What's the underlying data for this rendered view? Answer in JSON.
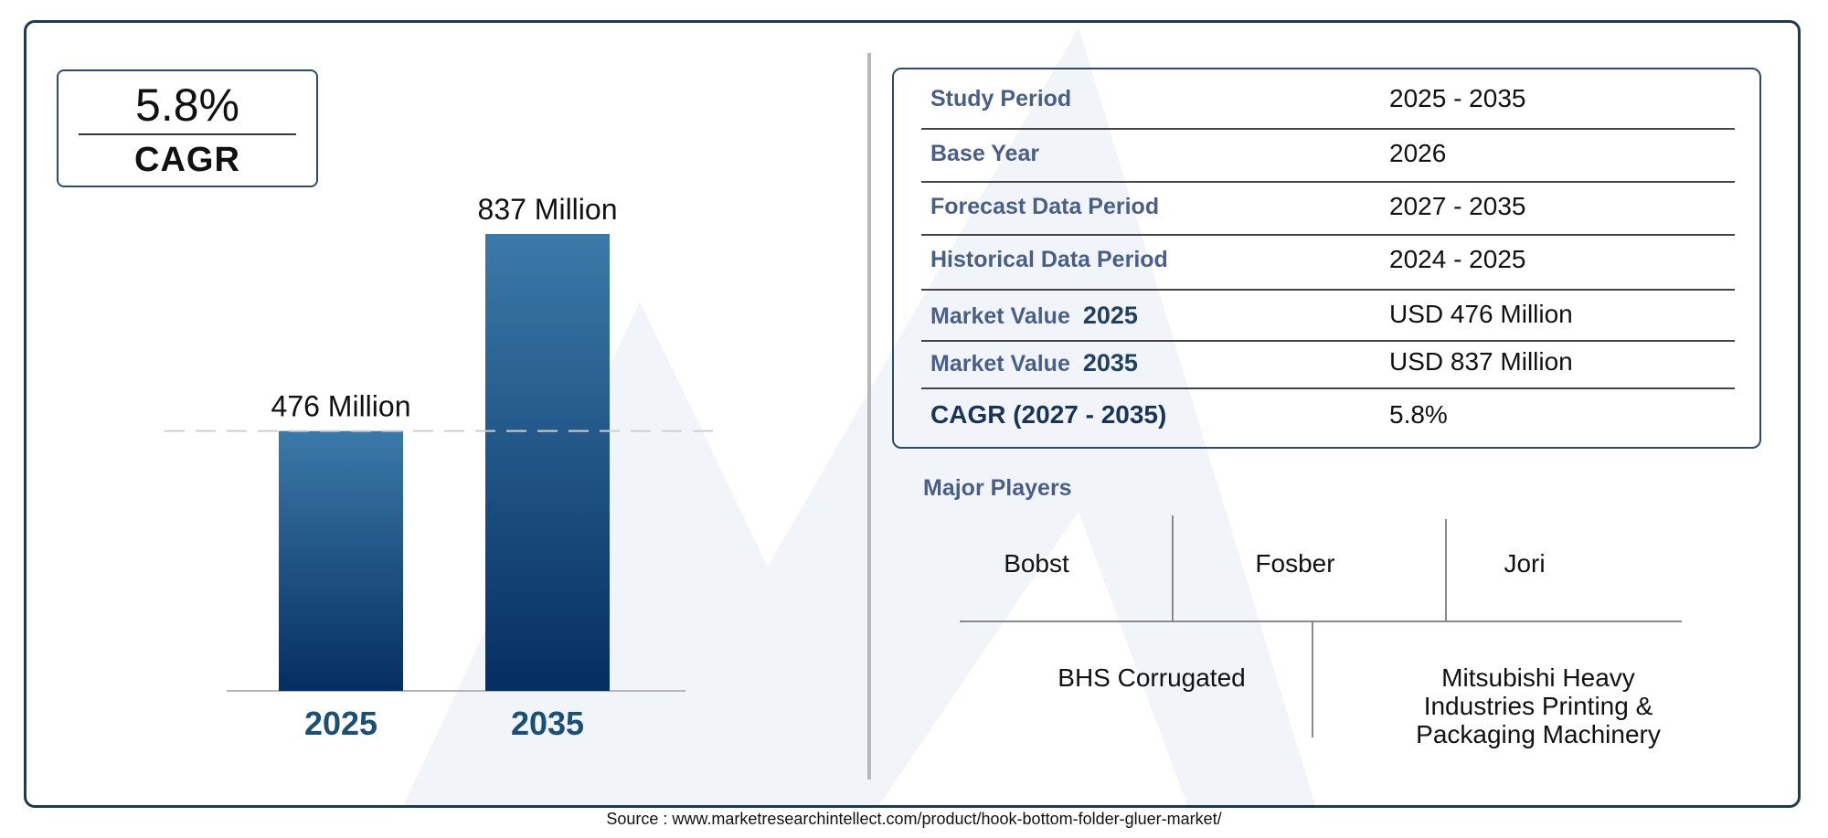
{
  "cagr_badge": {
    "value": "5.8%",
    "label": "CAGR"
  },
  "chart_data": {
    "type": "bar",
    "categories": [
      "2025",
      "2035"
    ],
    "values": [
      476,
      837
    ],
    "data_labels": [
      "476 Million",
      "837 Million"
    ],
    "unit": "Million",
    "bar_color_top": "#3b7aa8",
    "bar_color_bottom": "#052e62",
    "axis_label_color": "#1d4e73"
  },
  "info_table": {
    "rows": [
      {
        "label": "Study Period",
        "year": "",
        "value": "2025 - 2035"
      },
      {
        "label": "Base Year",
        "year": "",
        "value": "2026"
      },
      {
        "label": "Forecast Data Period",
        "year": "",
        "value": "2027 - 2035"
      },
      {
        "label": "Historical Data Period",
        "year": "",
        "value": "2024 - 2025"
      },
      {
        "label": "Market Value",
        "year": "2025",
        "value": "USD 476 Million"
      },
      {
        "label": "Market Value",
        "year": "2035",
        "value": "USD 837 Million"
      },
      {
        "label": "CAGR (2027 - 2035)",
        "year": "",
        "value": "5.8%"
      }
    ]
  },
  "major_players": {
    "title": "Major Players",
    "row1": [
      "Bobst",
      "Fosber",
      "Jori"
    ],
    "row2": [
      "BHS Corrugated",
      "Mitsubishi Heavy\nIndustries Printing &\nPackaging Machinery"
    ]
  },
  "source": "Source : www.marketresearchintellect.com/product/hook-bottom-folder-gluer-market/"
}
